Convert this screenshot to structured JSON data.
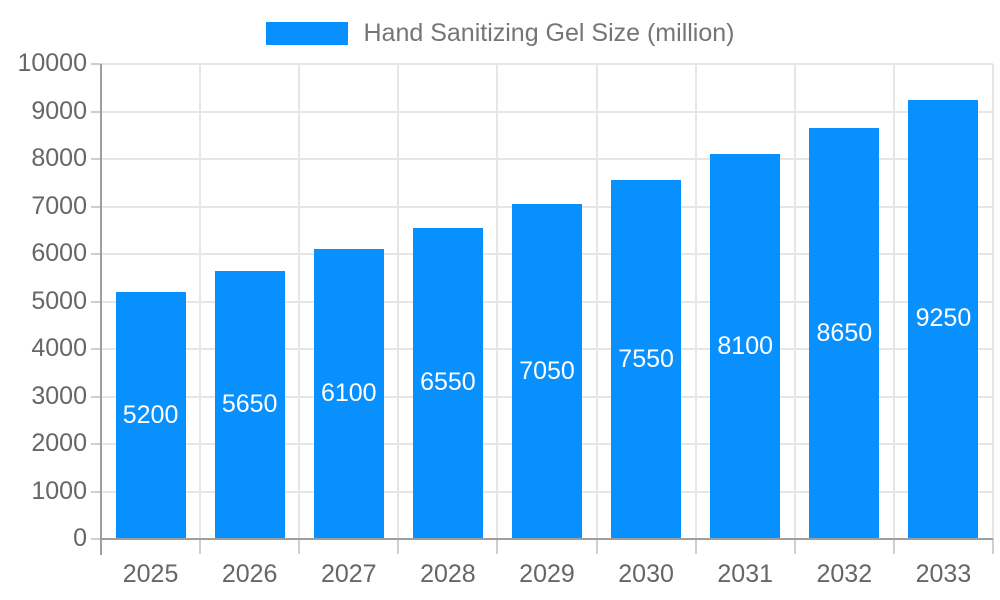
{
  "chart_data": {
    "type": "bar",
    "title": "Hand Sanitizing Gel Size (million)",
    "legend": {
      "position": "top",
      "label": "Hand Sanitizing Gel Size (million)"
    },
    "categories": [
      "2025",
      "2026",
      "2027",
      "2028",
      "2029",
      "2030",
      "2031",
      "2032",
      "2033"
    ],
    "series": [
      {
        "name": "Hand Sanitizing Gel Size (million)",
        "values": [
          5200,
          5650,
          6100,
          6550,
          7050,
          7550,
          8100,
          8650,
          9250
        ]
      }
    ],
    "value_labels_shown": true,
    "xlabel": "",
    "ylabel": "",
    "ylim": [
      0,
      10000
    ],
    "ytick_step": 1000,
    "ytick_labels": [
      "0",
      "1000",
      "2000",
      "3000",
      "4000",
      "5000",
      "6000",
      "7000",
      "8000",
      "9000",
      "10000"
    ],
    "grid": true,
    "colors": {
      "bar": "#0990ff",
      "grid": "#e6e6e6",
      "axis": "#9e9e9e",
      "tick": "#cfcfcf",
      "axis_label": "#666666",
      "legend_text": "#757575",
      "value_label": "#ffffff",
      "background": "#ffffff"
    }
  }
}
